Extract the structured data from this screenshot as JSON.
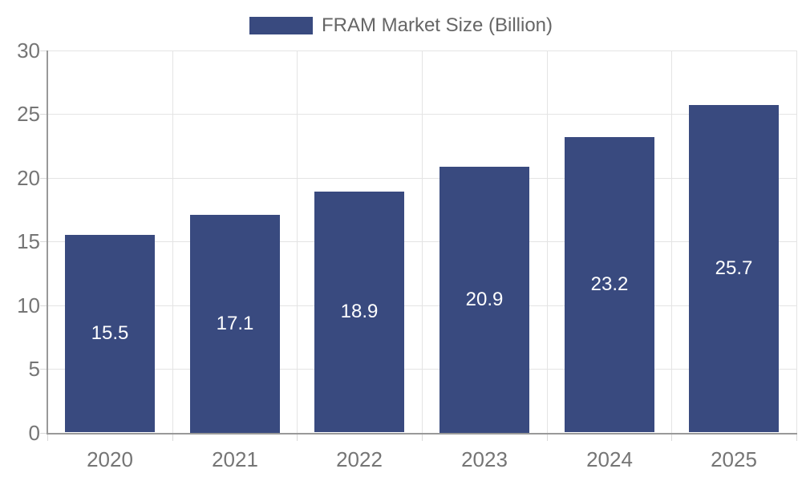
{
  "chart_data": {
    "type": "bar",
    "title": "FRAM Market Size (Billion)",
    "series": [
      {
        "name": "FRAM Market Size (Billion)",
        "values": [
          15.5,
          17.1,
          18.9,
          20.9,
          23.2,
          25.7
        ]
      }
    ],
    "categories": [
      "2020",
      "2021",
      "2022",
      "2023",
      "2024",
      "2025"
    ],
    "xlabel": "",
    "ylabel": "",
    "ylim": [
      0,
      30
    ],
    "yticks": [
      0,
      5,
      10,
      15,
      20,
      25,
      30
    ],
    "grid": "horizontal and vertical light gridlines",
    "legend_position": "top-center",
    "value_label_position": "inside-middle",
    "colors": {
      "bar_fill": "#394A7F",
      "value_label_text": "#ffffff",
      "axis_line": "#999999",
      "grid_line": "#e4e4e4",
      "tick_line": "#d9d9d9",
      "axis_label_text": "#757575",
      "legend_text": "#666666",
      "background": "#ffffff"
    }
  }
}
